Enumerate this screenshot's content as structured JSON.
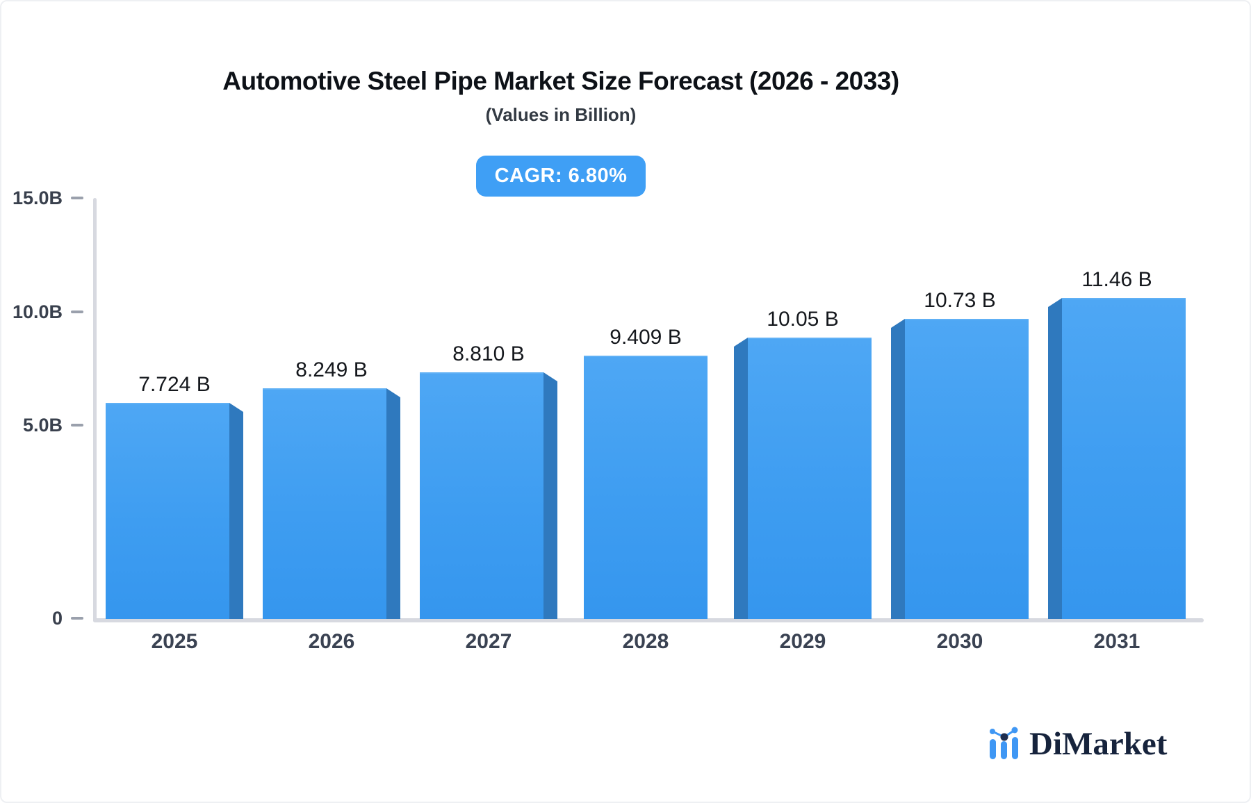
{
  "header": {
    "title": "Automotive Steel Pipe Market Size Forecast (2026 - 2033)",
    "subtitle": "(Values in Billion)",
    "cagr_label": "CAGR: 6.80%"
  },
  "chart_data": {
    "type": "bar",
    "title": "Automotive Steel Pipe Market Size Forecast (2026 - 2033)",
    "subtitle": "(Values in Billion)",
    "cagr_percent": "6.80%",
    "categories": [
      "2025",
      "2026",
      "2027",
      "2028",
      "2029",
      "2030",
      "2031"
    ],
    "values": [
      7.724,
      8.249,
      8.81,
      9.409,
      10.05,
      10.73,
      11.46
    ],
    "value_labels": [
      "7.724 B",
      "8.249 B",
      "8.810 B",
      "9.409 B",
      "10.05 B",
      "10.73 B",
      "11.46 B"
    ],
    "xlabel": "",
    "ylabel": "",
    "ylim": [
      0,
      15
    ],
    "y_ticks": [
      "15.0B",
      "10.0B",
      "5.0B",
      "0"
    ],
    "grid": false,
    "legend": false,
    "bar_color": "#3e9df1",
    "bar_side_color": "#2f79be",
    "accent_color": "#3f9ff5"
  },
  "footer": {
    "brand": "DiMarket",
    "logo_icon": "bar-chart-trend-icon",
    "logo_blue": "#3f97f4",
    "logo_navy": "#16233c"
  }
}
